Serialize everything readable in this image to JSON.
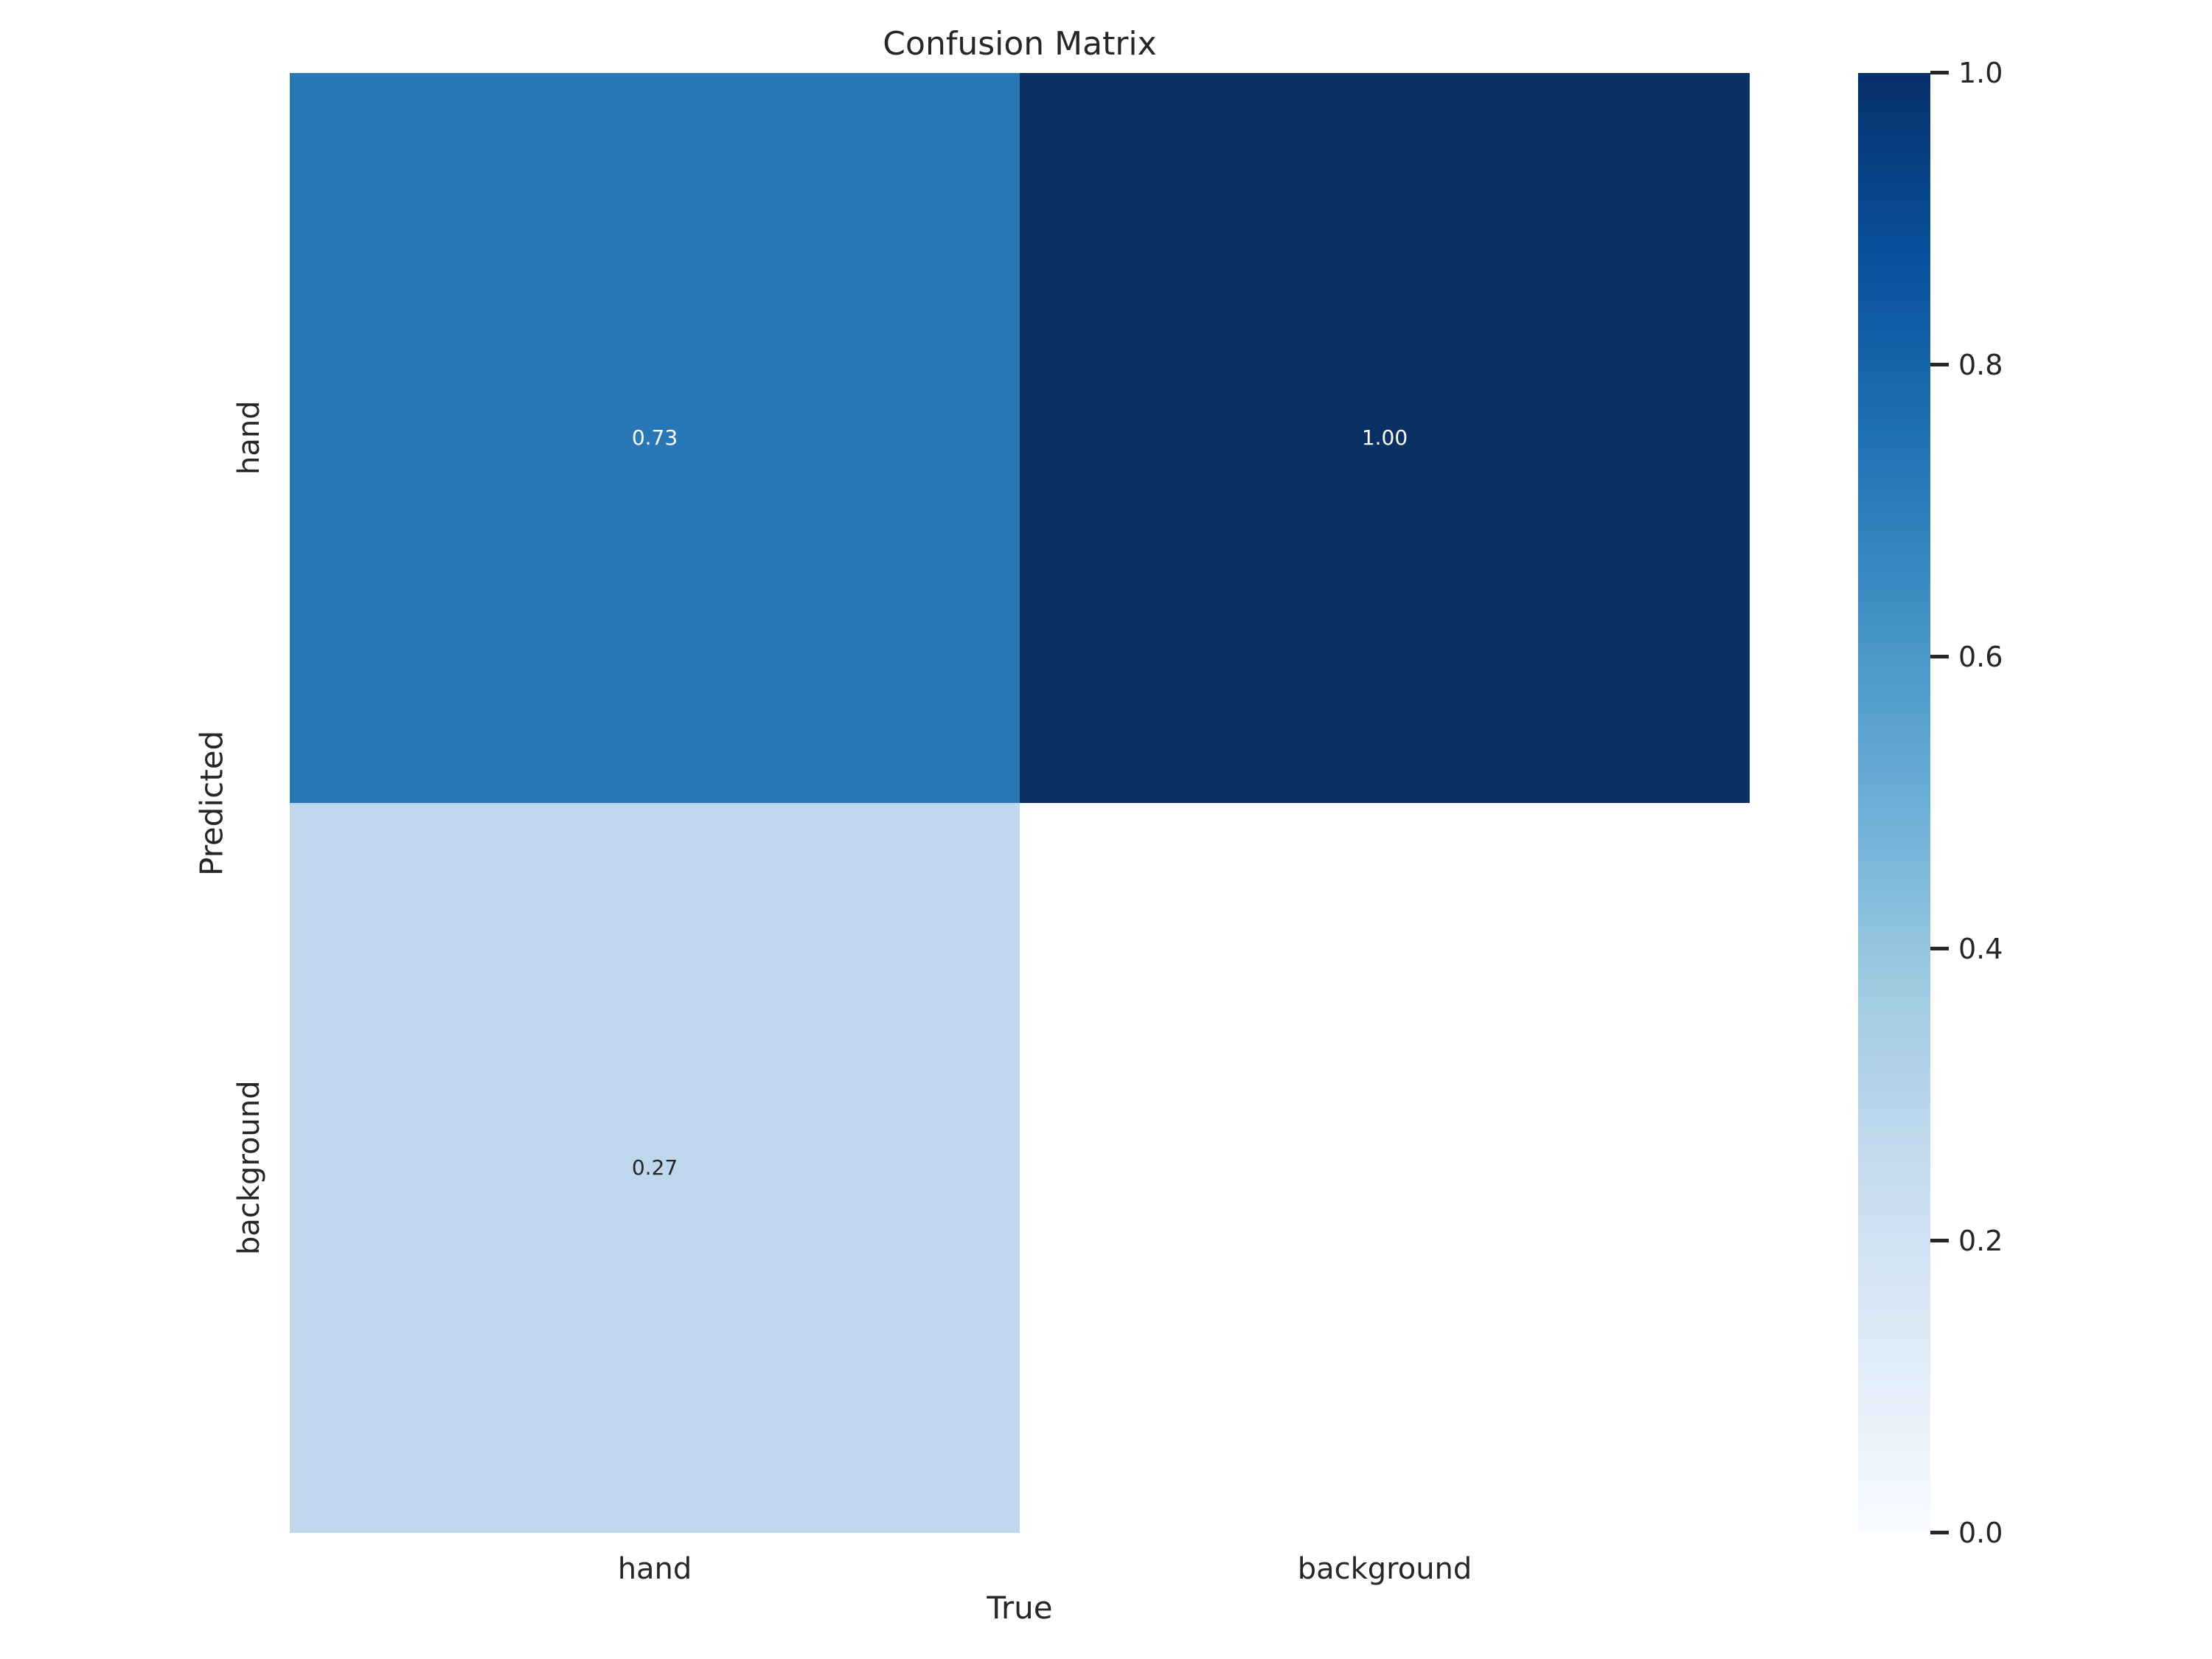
{
  "chart_data": {
    "type": "heatmap",
    "title": "Confusion Matrix",
    "xlabel": "True",
    "ylabel": "Predicted",
    "x_categories": [
      "hand",
      "background"
    ],
    "y_categories": [
      "hand",
      "background"
    ],
    "values": [
      [
        0.73,
        1.0
      ],
      [
        0.27,
        null
      ]
    ],
    "annotations": [
      [
        "0.73",
        "1.00"
      ],
      [
        "0.27",
        ""
      ]
    ],
    "cell_colors": [
      [
        "#2878b8",
        "#0b3164"
      ],
      [
        "#bed7ec",
        "#ffffff"
      ]
    ],
    "annotation_colors": [
      [
        "#ffffff",
        "#ffffff"
      ],
      [
        "#262626",
        "#262626"
      ]
    ],
    "colormap": "Blues",
    "colormap_stops": [
      "#08306b",
      "#08519c",
      "#2171b5",
      "#4292c6",
      "#6baed6",
      "#9ecae1",
      "#c6dbef",
      "#deebf7",
      "#f7fbff"
    ],
    "value_range": [
      0.0,
      1.0
    ],
    "grid": false,
    "legend_position": "colorbar-right",
    "colorbar_ticks": [
      "1.0",
      "0.8",
      "0.6",
      "0.4",
      "0.2",
      "0.0"
    ]
  },
  "colors": {
    "background": "#ffffff",
    "text": "#262626",
    "tick_mark": "#262626"
  }
}
